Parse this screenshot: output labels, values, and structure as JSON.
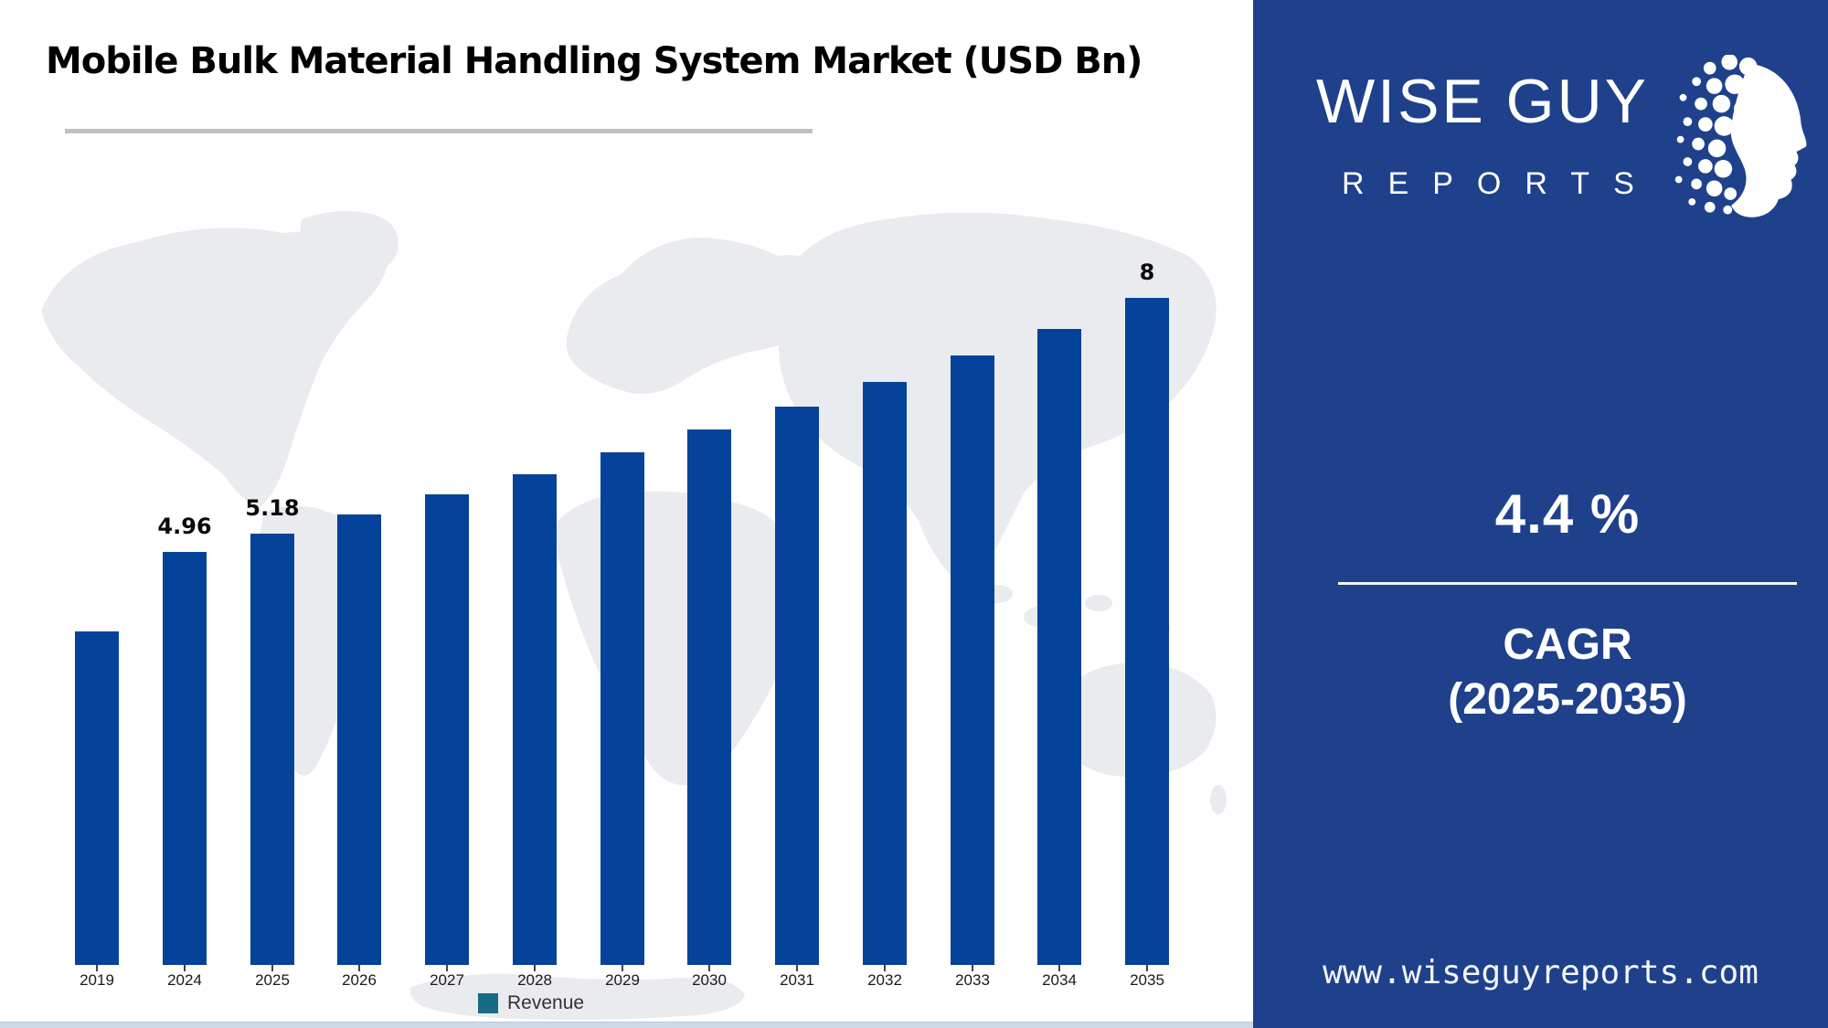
{
  "header": {
    "title": "Mobile Bulk Material Handling System Market (USD Bn)"
  },
  "chart_data": {
    "type": "bar",
    "title": "Mobile Bulk Material Handling System Market (USD Bn)",
    "categories": [
      "2019",
      "2024",
      "2025",
      "2026",
      "2027",
      "2028",
      "2029",
      "2030",
      "2031",
      "2032",
      "2033",
      "2034",
      "2035"
    ],
    "values": [
      4.0,
      4.96,
      5.18,
      5.41,
      5.65,
      5.89,
      6.15,
      6.42,
      6.7,
      7.0,
      7.31,
      7.63,
      8.0
    ],
    "bar_labels": [
      "",
      "4.96",
      "5.18",
      "",
      "",
      "",
      "",
      "",
      "",
      "",
      "",
      "",
      "8"
    ],
    "series_name": "Revenue",
    "bar_color": "#05429a",
    "xlabel": "",
    "ylabel": "",
    "ylim": [
      0,
      8.8
    ],
    "grid": false,
    "legend": {
      "label": "Revenue",
      "marker_color": "#186b85",
      "position": "bottom-center"
    },
    "watermark": "world-map"
  },
  "sidebar": {
    "background_color": "#1f418c",
    "logo": {
      "line1": "WISE GUY",
      "line2": "REPORTS",
      "icon": "dotted-head-profile-icon"
    },
    "cagr_value": "4.4 %",
    "cagr_label": "CAGR",
    "cagr_period": "(2025-2035)",
    "website": "www.wiseguyreports.com"
  }
}
